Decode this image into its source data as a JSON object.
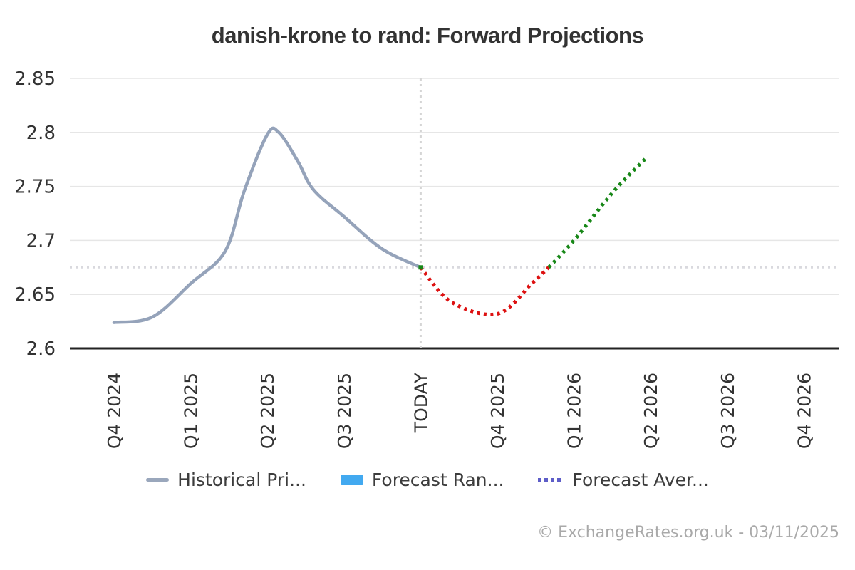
{
  "title": "danish-krone to rand: Forward Projections",
  "watermark": "© ExchangeRates.org.uk - 03/11/2025",
  "legend": {
    "items": [
      {
        "label": "Historical Pri...",
        "swatch": "line",
        "color": "#9aa7bc"
      },
      {
        "label": "Forecast Ran...",
        "swatch": "rect",
        "color": "#42a9f0"
      },
      {
        "label": "Forecast Aver...",
        "swatch": "dotted",
        "color": "#5d5dc8"
      }
    ]
  },
  "chart_data": {
    "type": "line",
    "title": "danish-krone to rand: Forward Projections",
    "x_categories": [
      "Q4 2024",
      "Q1 2025",
      "Q2 2025",
      "Q3 2025",
      "TODAY",
      "Q4 2025",
      "Q1 2026",
      "Q2 2026",
      "Q3 2026",
      "Q4 2026"
    ],
    "y_ticks": [
      2.6,
      2.65,
      2.7,
      2.75,
      2.8,
      2.85
    ],
    "ylim": [
      2.6,
      2.85
    ],
    "grid": true,
    "grid_color": "#e6e6e6",
    "axis_color": "#222222",
    "label_color": "#333333",
    "legend_position": "bottom",
    "today": {
      "index": 4,
      "value": 2.675,
      "hline_color": "#d9d9de",
      "vline_color": "#d5d5d5",
      "marker_color": "#178717"
    },
    "series": [
      {
        "name": "Historical Price",
        "style": "solid",
        "color": "#95a3ba",
        "width": 4.5,
        "points": [
          [
            0,
            2.624
          ],
          [
            0.5,
            2.629
          ],
          [
            1,
            2.66
          ],
          [
            1.45,
            2.69
          ],
          [
            1.7,
            2.746
          ],
          [
            2,
            2.798
          ],
          [
            2.15,
            2.8
          ],
          [
            2.4,
            2.773
          ],
          [
            2.6,
            2.747
          ],
          [
            3,
            2.722
          ],
          [
            3.5,
            2.692
          ],
          [
            4,
            2.675
          ]
        ]
      },
      {
        "name": "Forecast Average (below today rate)",
        "style": "dotted",
        "color": "#dd1111",
        "width": 5,
        "points": [
          [
            4,
            2.675
          ],
          [
            4.4,
            2.643
          ],
          [
            5,
            2.632
          ],
          [
            5.45,
            2.66
          ],
          [
            5.67,
            2.675
          ]
        ]
      },
      {
        "name": "Forecast Average (above today rate)",
        "style": "dotted",
        "color": "#178717",
        "width": 5,
        "points": [
          [
            5.67,
            2.675
          ],
          [
            6,
            2.7
          ],
          [
            6.5,
            2.744
          ],
          [
            6.95,
            2.777
          ]
        ]
      }
    ]
  }
}
